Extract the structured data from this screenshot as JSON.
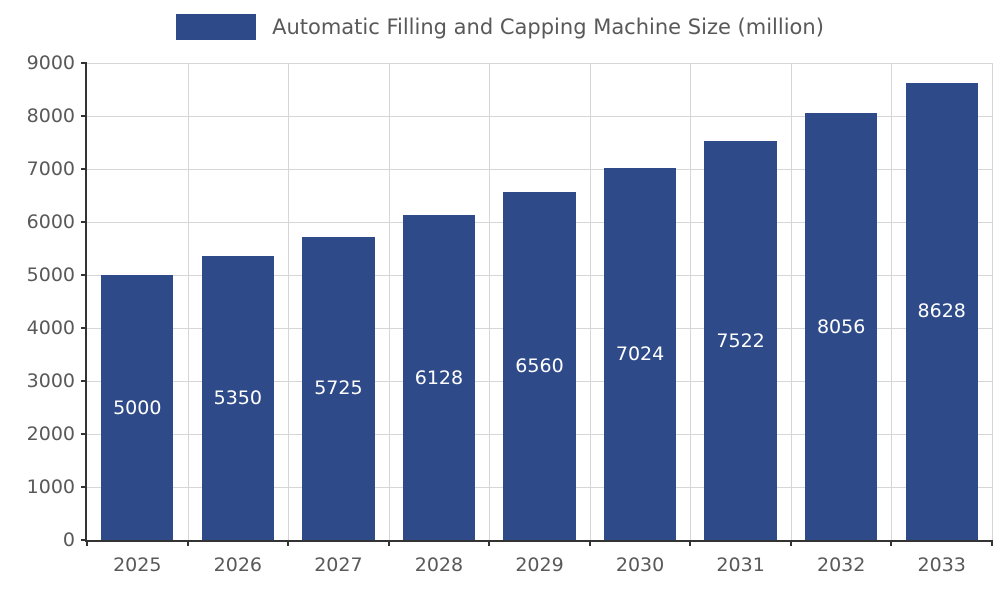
{
  "chart_data": {
    "type": "bar",
    "title": "Automatic Filling and Capping Machine Size (million)",
    "categories": [
      "2025",
      "2026",
      "2027",
      "2028",
      "2029",
      "2030",
      "2031",
      "2032",
      "2033"
    ],
    "values": [
      5000,
      5350,
      5725,
      6128,
      6560,
      7024,
      7522,
      8056,
      8628
    ],
    "xlabel": "",
    "ylabel": "",
    "ylim": [
      0,
      9000
    ],
    "ytick_step": 1000,
    "yticks": [
      0,
      1000,
      2000,
      3000,
      4000,
      5000,
      6000,
      7000,
      8000,
      9000
    ],
    "grid": true,
    "legend_position": "top",
    "bar_color": "#2e4a89",
    "bar_label_color": "#ffffff",
    "axis_text_color": "#595959",
    "gridline_color": "#d6d6d6"
  }
}
